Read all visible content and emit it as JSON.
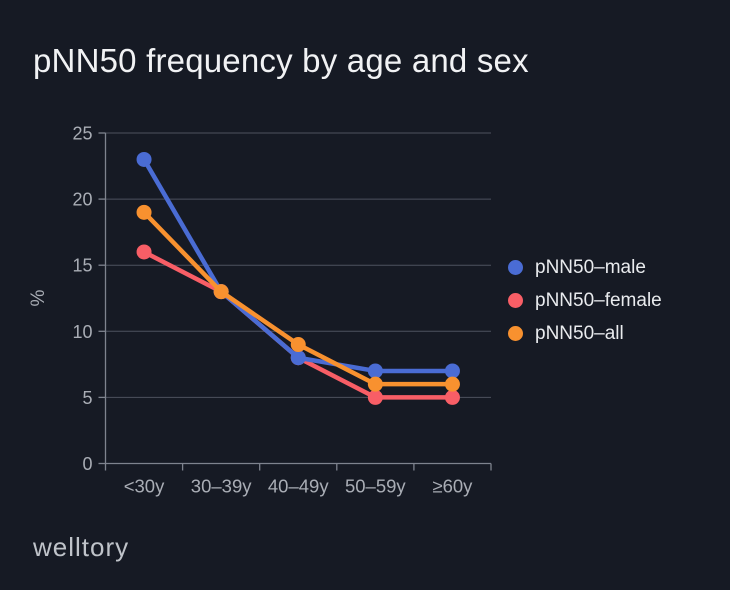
{
  "title": "pNN50 frequency by age and sex",
  "logo": {
    "text": "welltory"
  },
  "colors": {
    "background": "#161a24",
    "male": "#4a6cd4",
    "female": "#f85e66",
    "all": "#f8912f",
    "grid": "#4d525e",
    "axis": "#7e838e",
    "tick_text": "#a9adb5",
    "title_text": "#f1f2f4",
    "legend_text": "#e9ebee",
    "logo_text": "#bfc3c9"
  },
  "chart_data": {
    "type": "line",
    "categories": [
      "<30y",
      "30–39y",
      "40–49y",
      "50–59y",
      "≥60y"
    ],
    "series": [
      {
        "name": "pNN50–male",
        "color_key": "male",
        "values": [
          23,
          13,
          8,
          7,
          7
        ]
      },
      {
        "name": "pNN50–female",
        "color_key": "female",
        "values": [
          16,
          13,
          8,
          5,
          5
        ]
      },
      {
        "name": "pNN50–all",
        "color_key": "all",
        "values": [
          19,
          13,
          9,
          6,
          6
        ]
      }
    ],
    "xlabel": "",
    "ylabel": "%",
    "ylim": [
      0,
      25
    ],
    "yticks": [
      0,
      5,
      10,
      15,
      20,
      25
    ],
    "grid": true,
    "legend_position": "right",
    "draw_order": [
      1,
      0,
      2
    ]
  }
}
